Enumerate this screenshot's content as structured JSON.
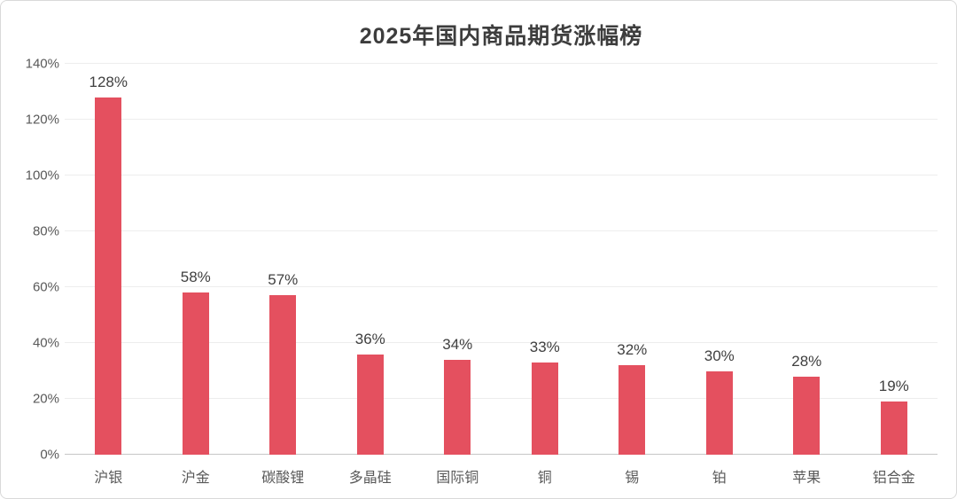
{
  "page": {
    "background": "#ffffff",
    "card_border_color": "#d9d9d9"
  },
  "chart_data": {
    "type": "bar",
    "title": "2025年国内商品期货涨幅榜",
    "categories": [
      "沪银",
      "沪金",
      "碳酸锂",
      "多晶硅",
      "国际铜",
      "铜",
      "锡",
      "铂",
      "苹果",
      "铝合金"
    ],
    "values": [
      128,
      58,
      57,
      36,
      34,
      33,
      32,
      30,
      28,
      19
    ],
    "data_labels": [
      "128%",
      "58%",
      "57%",
      "36%",
      "34%",
      "33%",
      "32%",
      "30%",
      "28%",
      "19%"
    ],
    "xlabel": "",
    "ylabel": "",
    "ylim": [
      0,
      140
    ],
    "y_tick_step": 20,
    "y_tick_labels": [
      "0%",
      "20%",
      "40%",
      "60%",
      "80%",
      "100%",
      "120%",
      "140%"
    ],
    "grid": true,
    "legend": "none",
    "bar_color": "#e4505f",
    "colors": {
      "title": "#3d3d3d",
      "data_label": "#404040",
      "axis_label": "#595959",
      "gridline": "#ededed",
      "axis_line": "#c6c6c6"
    }
  }
}
